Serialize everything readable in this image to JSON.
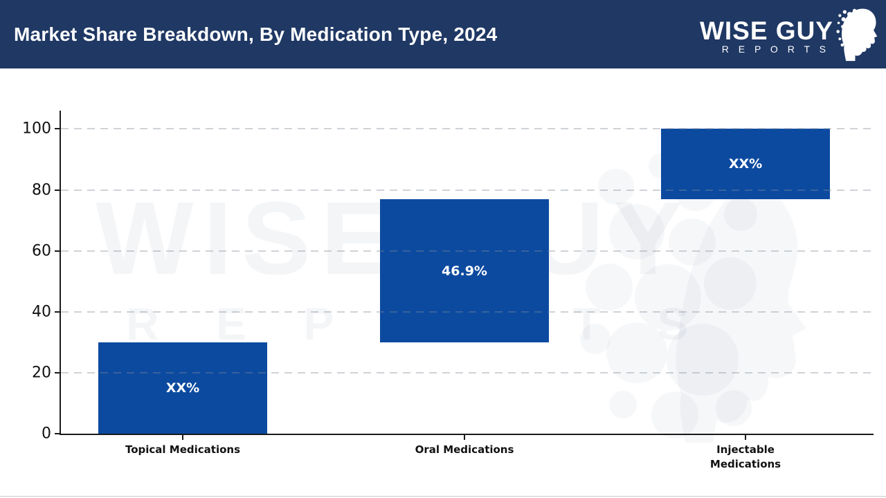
{
  "header": {
    "title": "Market Share Breakdown, By Medication Type, 2024",
    "logo_line1": "WISE GUY",
    "logo_line2": "R E P O R T S"
  },
  "watermark": {
    "line1": "WISE GUY",
    "line2": "R E P O R T S"
  },
  "colors": {
    "header_bg": "#1f3864",
    "header_text": "#ffffff",
    "bar_fill": "#0c4aa0",
    "bar_label": "#ffffff",
    "axis": "#1a1a1a",
    "tick_label": "#111111",
    "gridline": "rgba(128,138,150,0.38)",
    "watermark": "rgba(31,56,100,0.05)"
  },
  "chart_data": {
    "type": "bar",
    "variant": "floating-waterfall",
    "title": "Market Share Breakdown, By Medication Type, 2024",
    "xlabel": "",
    "ylabel": "",
    "categories": [
      "Topical Medications",
      "Oral Medications",
      "Injectable Medications"
    ],
    "bars": [
      {
        "category": "Topical Medications",
        "start": 0,
        "end": 30,
        "label": "XX%"
      },
      {
        "category": "Oral Medications",
        "start": 30,
        "end": 76.9,
        "label": "46.9%"
      },
      {
        "category": "Injectable Medications",
        "start": 76.9,
        "end": 100,
        "label": "XX%"
      }
    ],
    "yticks": [
      0,
      20,
      40,
      60,
      80,
      100
    ],
    "ylim": [
      0,
      106
    ],
    "grid": "horizontal-dashed",
    "legend": "none",
    "bar_color": "#0c4aa0",
    "value_label_color": "#ffffff"
  }
}
